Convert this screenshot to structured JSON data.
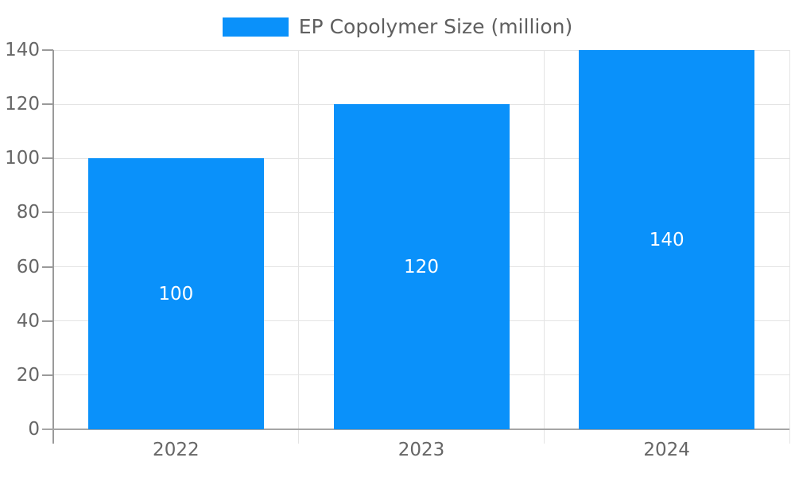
{
  "legend": {
    "label": "EP Copolymer Size (million)"
  },
  "chart_data": {
    "type": "bar",
    "title": "",
    "categories": [
      "2022",
      "2023",
      "2024"
    ],
    "series": [
      {
        "name": "EP Copolymer Size (million)",
        "values": [
          100,
          120,
          140
        ]
      }
    ],
    "bar_value_labels": [
      "100",
      "120",
      "140"
    ],
    "xlabel": "",
    "ylabel": "",
    "ylim": [
      0,
      140
    ],
    "yticks": [
      0,
      20,
      40,
      60,
      80,
      100,
      120,
      140
    ],
    "grid": true,
    "legend_position": "top-center",
    "colors": {
      "bar": "#0a91fa",
      "gridline": "#e4e4e4",
      "category_separator": "#e4e4e4",
      "axis_line": "#9a9a9a",
      "baseline": "#a5a5a5",
      "tick_mark": "#9a9a9a",
      "tick_text": "#666666",
      "legend_text": "#5f5f5f",
      "bar_label_text": "#ffffff",
      "background": "#ffffff"
    }
  }
}
